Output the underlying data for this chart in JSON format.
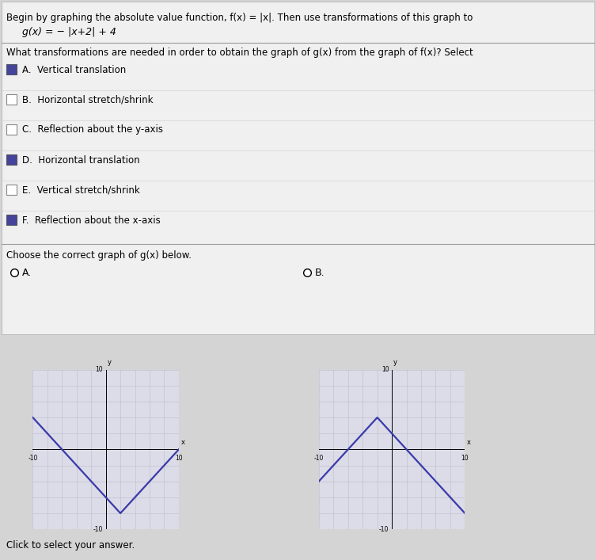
{
  "bg_color": "#d4d4d4",
  "white_bg": "#f2f2f2",
  "title_text": "Begin by graphing the absolute value function, f(x) = |x|. Then use transformations of this graph to",
  "subtitle_text": "g(x) = − |x+2| + 4",
  "question_text": "What transformations are needed in order to obtain the graph of g(x) from the graph of f(x)? Select",
  "choices": [
    {
      "label": "A.",
      "text": "Vertical translation",
      "checked": true
    },
    {
      "label": "B.",
      "text": "Horizontal stretch/shrink",
      "checked": false
    },
    {
      "label": "C.",
      "text": "Reflection about the y-axis",
      "checked": false
    },
    {
      "label": "D.",
      "text": "Horizontal translation",
      "checked": true
    },
    {
      "label": "E.",
      "text": "Vertical stretch/shrink",
      "checked": false
    },
    {
      "label": "F.",
      "text": "Reflection about the x-axis",
      "checked": true
    }
  ],
  "graph_section_text": "Choose the correct graph of g(x) below.",
  "click_text": "Click to select your answer.",
  "line_color": "#3a3aaa",
  "grid_color": "#bbbbcc",
  "graph_bg": "#dcdce8",
  "checked_color": "#44449a",
  "separator_color": "#999999",
  "thin_sep_color": "#cccccc"
}
